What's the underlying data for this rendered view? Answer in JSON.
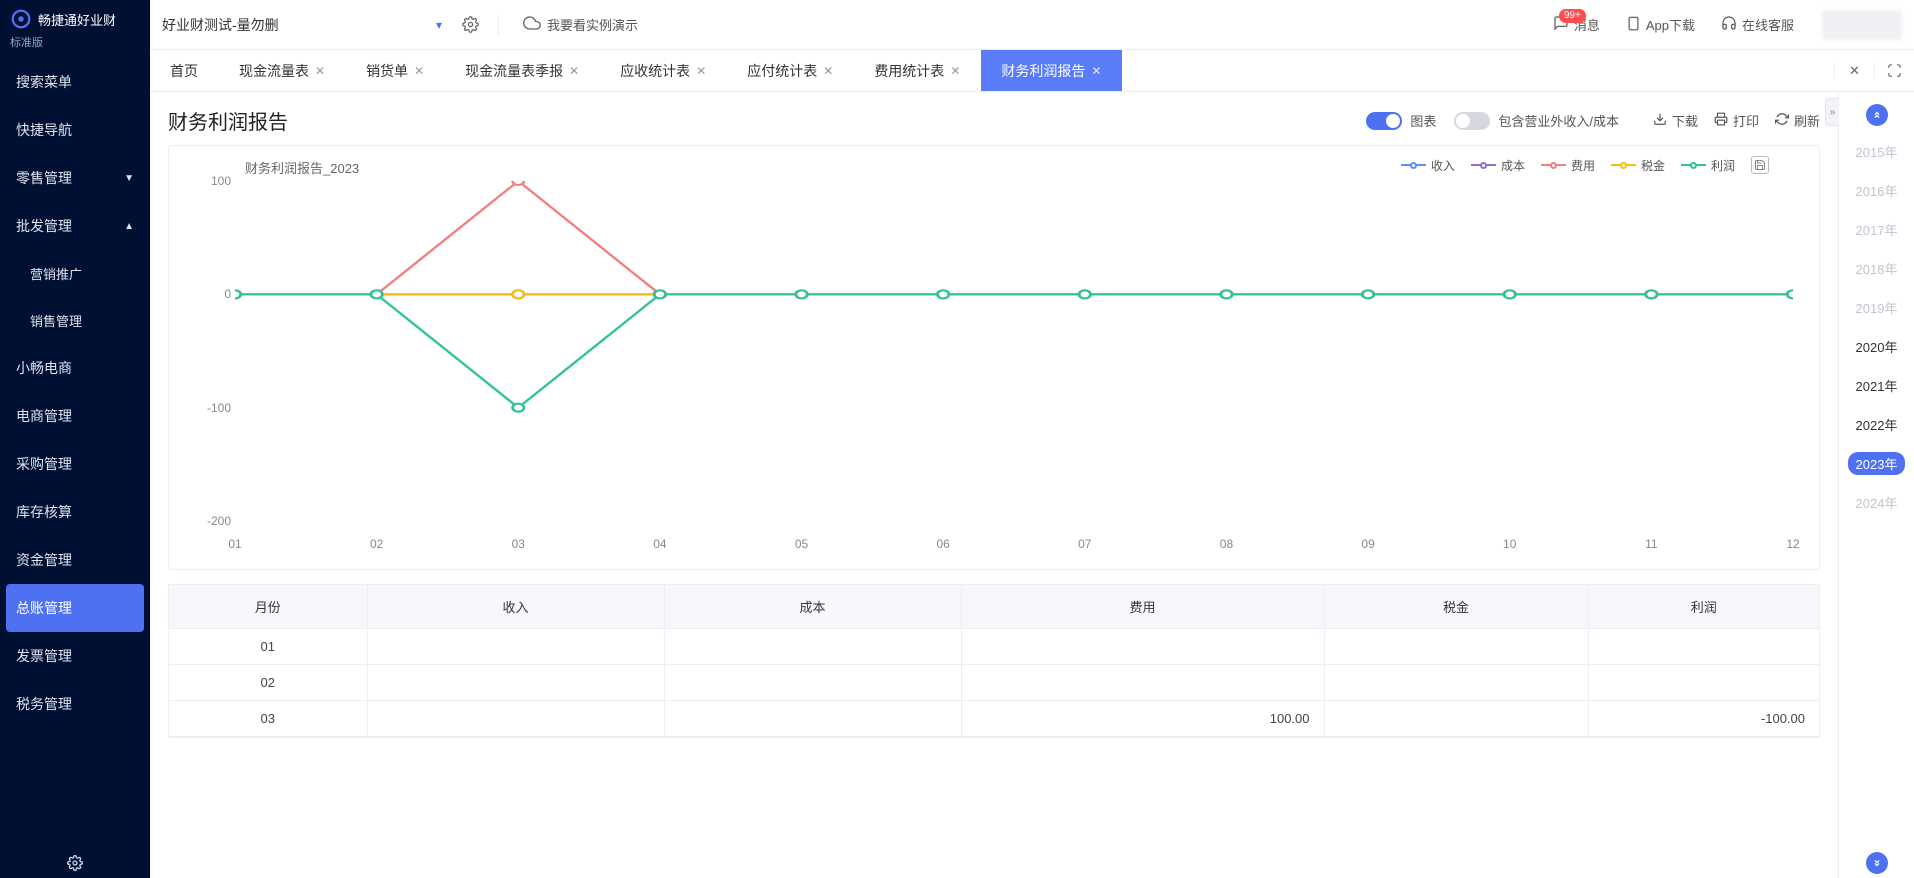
{
  "brand": {
    "name": "畅捷通好业财",
    "edition": "标准版"
  },
  "sidebar": {
    "items": [
      {
        "label": "搜索菜单",
        "caret": ""
      },
      {
        "label": "快捷导航",
        "caret": ""
      },
      {
        "label": "零售管理",
        "caret": "▼"
      },
      {
        "label": "批发管理",
        "caret": "▲"
      },
      {
        "label": "营销推广",
        "caret": "",
        "indent": true
      },
      {
        "label": "销售管理",
        "caret": "",
        "indent": true
      },
      {
        "label": "小畅电商",
        "caret": ""
      },
      {
        "label": "电商管理",
        "caret": ""
      },
      {
        "label": "采购管理",
        "caret": ""
      },
      {
        "label": "库存核算",
        "caret": ""
      },
      {
        "label": "资金管理",
        "caret": ""
      },
      {
        "label": "总账管理",
        "caret": "",
        "active": true
      },
      {
        "label": "发票管理",
        "caret": ""
      },
      {
        "label": "税务管理",
        "caret": ""
      }
    ]
  },
  "topbar": {
    "context": "好业财测试-量勿删",
    "demo": "我要看实例演示",
    "badge": "99+",
    "actions": {
      "message": "消息",
      "app": "App下载",
      "service": "在线客服"
    }
  },
  "tabs": [
    {
      "label": "首页",
      "closable": false
    },
    {
      "label": "现金流量表",
      "closable": true
    },
    {
      "label": "销货单",
      "closable": true
    },
    {
      "label": "现金流量表季报",
      "closable": true
    },
    {
      "label": "应收统计表",
      "closable": true
    },
    {
      "label": "应付统计表",
      "closable": true
    },
    {
      "label": "费用统计表",
      "closable": true
    },
    {
      "label": "财务利润报告",
      "closable": true,
      "active": true
    }
  ],
  "report": {
    "title": "财务利润报告",
    "toggle1_label": "图表",
    "toggle2_label": "包含营业外收入/成本",
    "actions": {
      "download": "下载",
      "print": "打印",
      "refresh": "刷新"
    }
  },
  "chart": {
    "title": "财务利润报告_2023",
    "type": "line",
    "legend": [
      {
        "key": "income",
        "label": "收入",
        "color": "#5b8ff9"
      },
      {
        "key": "cost",
        "label": "成本",
        "color": "#9270ca"
      },
      {
        "key": "expense",
        "label": "费用",
        "color": "#f08080"
      },
      {
        "key": "tax",
        "label": "税金",
        "color": "#f6bd16"
      },
      {
        "key": "profit",
        "label": "利润",
        "color": "#2fc29b"
      }
    ],
    "ylim": [
      -200,
      100
    ],
    "yticks": [
      100,
      0,
      -100,
      -200
    ],
    "categories": [
      "01",
      "02",
      "03",
      "04",
      "05",
      "06",
      "07",
      "08",
      "09",
      "10",
      "11",
      "12"
    ],
    "series": {
      "income": [
        0,
        0,
        0,
        0,
        0,
        0,
        0,
        0,
        0,
        0,
        0,
        0
      ],
      "cost": [
        0,
        0,
        0,
        0,
        0,
        0,
        0,
        0,
        0,
        0,
        0,
        0
      ],
      "expense": [
        0,
        0,
        100,
        0,
        0,
        0,
        0,
        0,
        0,
        0,
        0,
        0
      ],
      "tax": [
        0,
        0,
        0,
        0,
        0,
        0,
        0,
        0,
        0,
        0,
        0,
        0
      ],
      "profit": [
        0,
        0,
        -100,
        0,
        0,
        0,
        0,
        0,
        0,
        0,
        0,
        0
      ]
    },
    "marker_radius": 4,
    "line_width": 2,
    "grid_color": "#e8e8e8",
    "background_color": "#ffffff",
    "axis_label_color": "#888888",
    "axis_fontsize": 12
  },
  "table": {
    "columns": [
      "月份",
      "收入",
      "成本",
      "费用",
      "税金",
      "利润"
    ],
    "col_widths_pct": [
      12,
      18,
      18,
      22,
      16,
      14
    ],
    "rows": [
      {
        "month": "01",
        "income": "",
        "cost": "",
        "expense": "",
        "tax": "",
        "profit": ""
      },
      {
        "month": "02",
        "income": "",
        "cost": "",
        "expense": "",
        "tax": "",
        "profit": ""
      },
      {
        "month": "03",
        "income": "",
        "cost": "",
        "expense": "100.00",
        "tax": "",
        "profit": "-100.00"
      }
    ]
  },
  "years": {
    "list": [
      {
        "label": "2015年",
        "enabled": false
      },
      {
        "label": "2016年",
        "enabled": false
      },
      {
        "label": "2017年",
        "enabled": false
      },
      {
        "label": "2018年",
        "enabled": false
      },
      {
        "label": "2019年",
        "enabled": false
      },
      {
        "label": "2020年",
        "enabled": true
      },
      {
        "label": "2021年",
        "enabled": true
      },
      {
        "label": "2022年",
        "enabled": true
      },
      {
        "label": "2023年",
        "enabled": true,
        "active": true
      },
      {
        "label": "2024年",
        "enabled": false
      }
    ]
  }
}
